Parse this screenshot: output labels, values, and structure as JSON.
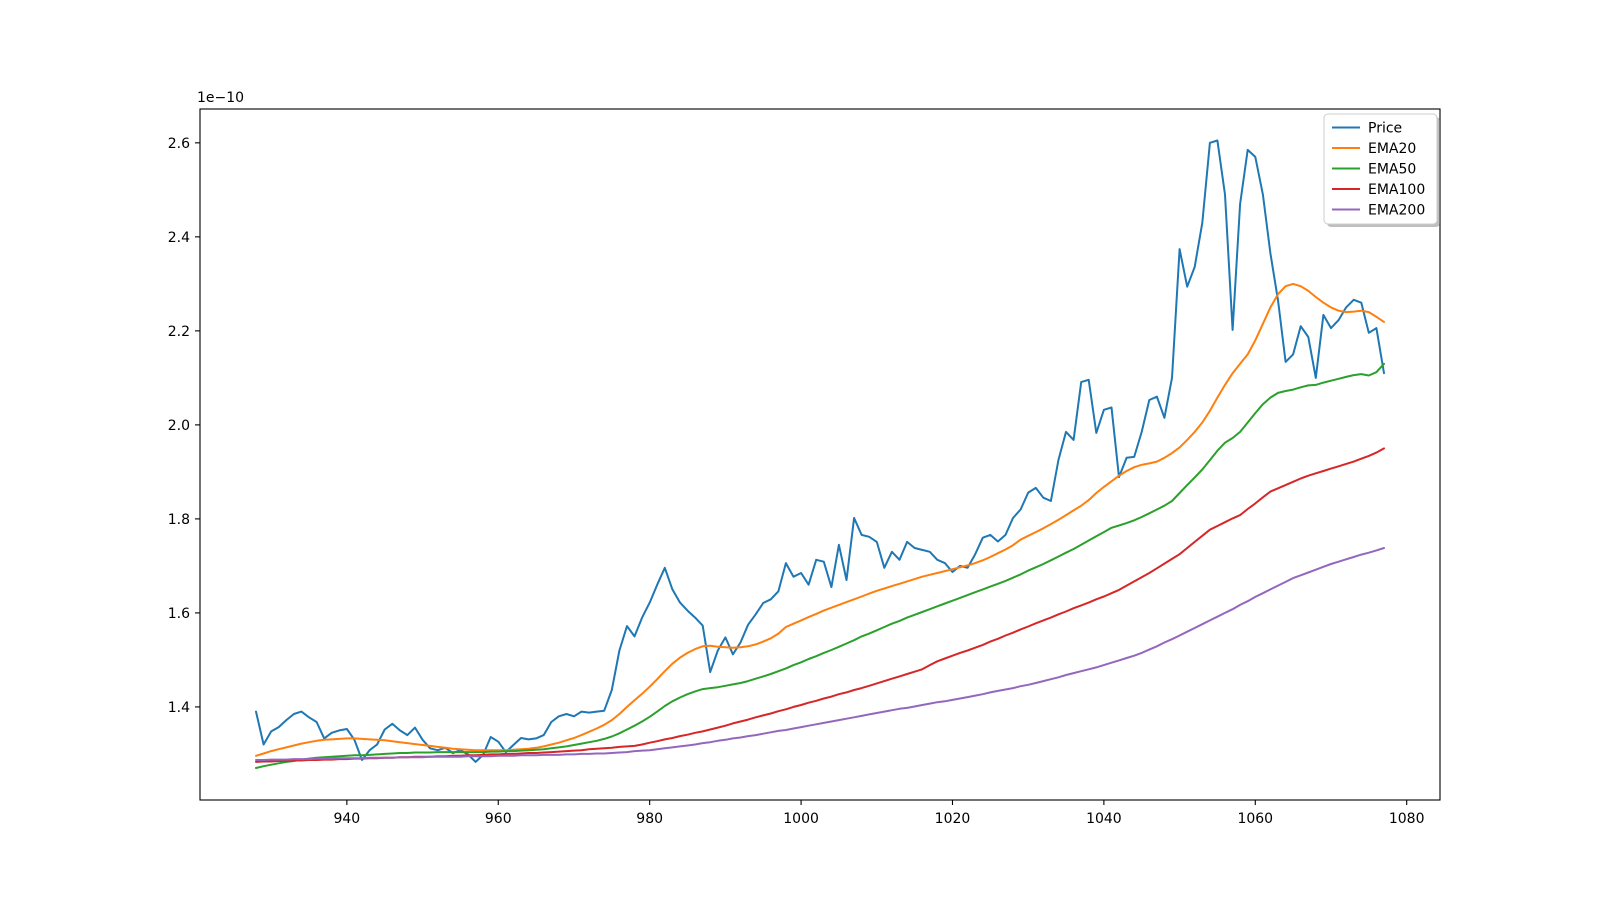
{
  "chart_data": {
    "type": "line",
    "title": "",
    "xlabel": "",
    "ylabel": "",
    "offset_text": "1e−10",
    "grid": false,
    "legend_position": "upper right",
    "xlim": [
      920.6,
      1084.4
    ],
    "ylim": [
      1.202,
      2.672
    ],
    "x_start": 928,
    "x_step": 1,
    "x_ticks": [
      {
        "value": 940,
        "label": "940"
      },
      {
        "value": 960,
        "label": "960"
      },
      {
        "value": 980,
        "label": "980"
      },
      {
        "value": 1000,
        "label": "1000"
      },
      {
        "value": 1020,
        "label": "1020"
      },
      {
        "value": 1040,
        "label": "1040"
      },
      {
        "value": 1060,
        "label": "1060"
      },
      {
        "value": 1080,
        "label": "1080"
      }
    ],
    "y_ticks": [
      {
        "value": 1.4,
        "label": "1.4"
      },
      {
        "value": 1.6,
        "label": "1.6"
      },
      {
        "value": 1.8,
        "label": "1.8"
      },
      {
        "value": 2.0,
        "label": "2.0"
      },
      {
        "value": 2.2,
        "label": "2.2"
      },
      {
        "value": 2.4,
        "label": "2.4"
      },
      {
        "value": 2.6,
        "label": "2.6"
      }
    ],
    "series": [
      {
        "name": "Price",
        "color": "#1f77b4",
        "values": [
          1.39,
          1.32,
          1.348,
          1.357,
          1.372,
          1.385,
          1.39,
          1.378,
          1.368,
          1.333,
          1.345,
          1.35,
          1.353,
          1.33,
          1.287,
          1.308,
          1.32,
          1.352,
          1.364,
          1.35,
          1.34,
          1.356,
          1.33,
          1.312,
          1.308,
          1.313,
          1.302,
          1.308,
          1.299,
          1.283,
          1.298,
          1.336,
          1.326,
          1.304,
          1.319,
          1.334,
          1.331,
          1.333,
          1.34,
          1.368,
          1.38,
          1.385,
          1.38,
          1.39,
          1.388,
          1.39,
          1.392,
          1.436,
          1.52,
          1.572,
          1.55,
          1.59,
          1.622,
          1.66,
          1.696,
          1.65,
          1.622,
          1.605,
          1.59,
          1.573,
          1.474,
          1.52,
          1.548,
          1.512,
          1.537,
          1.575,
          1.597,
          1.621,
          1.629,
          1.646,
          1.706,
          1.677,
          1.685,
          1.66,
          1.713,
          1.709,
          1.655,
          1.745,
          1.67,
          1.802,
          1.766,
          1.762,
          1.751,
          1.696,
          1.73,
          1.713,
          1.751,
          1.738,
          1.734,
          1.73,
          1.713,
          1.706,
          1.687,
          1.7,
          1.696,
          1.725,
          1.76,
          1.766,
          1.752,
          1.766,
          1.802,
          1.82,
          1.856,
          1.866,
          1.845,
          1.838,
          1.926,
          1.985,
          1.968,
          2.091,
          2.096,
          1.983,
          2.032,
          2.037,
          1.889,
          1.93,
          1.932,
          1.985,
          2.053,
          2.06,
          2.015,
          2.1,
          2.374,
          2.294,
          2.336,
          2.43,
          2.6,
          2.605,
          2.49,
          2.202,
          2.47,
          2.585,
          2.57,
          2.49,
          2.365,
          2.265,
          2.134,
          2.15,
          2.21,
          2.187,
          2.1,
          2.234,
          2.206,
          2.223,
          2.25,
          2.266,
          2.26,
          2.196,
          2.206,
          2.11
        ]
      },
      {
        "name": "EMA20",
        "color": "#ff7f0e",
        "values": [
          1.296,
          1.301,
          1.306,
          1.31,
          1.314,
          1.318,
          1.322,
          1.325,
          1.328,
          1.33,
          1.331,
          1.332,
          1.333,
          1.333,
          1.332,
          1.331,
          1.33,
          1.329,
          1.327,
          1.325,
          1.323,
          1.321,
          1.319,
          1.317,
          1.315,
          1.313,
          1.311,
          1.31,
          1.309,
          1.308,
          1.308,
          1.308,
          1.308,
          1.308,
          1.309,
          1.31,
          1.311,
          1.313,
          1.316,
          1.32,
          1.324,
          1.329,
          1.334,
          1.34,
          1.347,
          1.354,
          1.362,
          1.372,
          1.385,
          1.4,
          1.414,
          1.428,
          1.443,
          1.459,
          1.476,
          1.492,
          1.505,
          1.515,
          1.523,
          1.529,
          1.53,
          1.528,
          1.527,
          1.526,
          1.527,
          1.529,
          1.533,
          1.539,
          1.546,
          1.556,
          1.57,
          1.577,
          1.584,
          1.591,
          1.598,
          1.605,
          1.611,
          1.617,
          1.623,
          1.629,
          1.635,
          1.641,
          1.647,
          1.652,
          1.657,
          1.662,
          1.667,
          1.672,
          1.677,
          1.681,
          1.685,
          1.689,
          1.693,
          1.697,
          1.701,
          1.706,
          1.712,
          1.719,
          1.727,
          1.735,
          1.744,
          1.756,
          1.764,
          1.772,
          1.78,
          1.789,
          1.798,
          1.808,
          1.818,
          1.828,
          1.84,
          1.855,
          1.868,
          1.88,
          1.892,
          1.902,
          1.91,
          1.915,
          1.918,
          1.922,
          1.93,
          1.94,
          1.952,
          1.968,
          1.985,
          2.005,
          2.03,
          2.058,
          2.085,
          2.11,
          2.13,
          2.15,
          2.18,
          2.215,
          2.25,
          2.278,
          2.295,
          2.3,
          2.295,
          2.285,
          2.272,
          2.26,
          2.25,
          2.243,
          2.24,
          2.241,
          2.243,
          2.24,
          2.23,
          2.219
        ]
      },
      {
        "name": "EMA50",
        "color": "#2ca02c",
        "values": [
          1.27,
          1.274,
          1.277,
          1.28,
          1.283,
          1.285,
          1.288,
          1.29,
          1.292,
          1.293,
          1.294,
          1.295,
          1.296,
          1.297,
          1.297,
          1.298,
          1.299,
          1.3,
          1.301,
          1.302,
          1.302,
          1.303,
          1.303,
          1.303,
          1.304,
          1.304,
          1.304,
          1.304,
          1.304,
          1.304,
          1.304,
          1.305,
          1.305,
          1.306,
          1.306,
          1.307,
          1.308,
          1.309,
          1.31,
          1.312,
          1.314,
          1.316,
          1.319,
          1.322,
          1.325,
          1.328,
          1.332,
          1.337,
          1.344,
          1.352,
          1.36,
          1.369,
          1.379,
          1.39,
          1.402,
          1.412,
          1.42,
          1.427,
          1.433,
          1.438,
          1.44,
          1.442,
          1.445,
          1.448,
          1.451,
          1.455,
          1.46,
          1.465,
          1.47,
          1.476,
          1.482,
          1.489,
          1.495,
          1.502,
          1.508,
          1.515,
          1.521,
          1.528,
          1.535,
          1.542,
          1.55,
          1.556,
          1.563,
          1.57,
          1.577,
          1.583,
          1.59,
          1.596,
          1.602,
          1.608,
          1.614,
          1.62,
          1.626,
          1.632,
          1.638,
          1.644,
          1.65,
          1.656,
          1.662,
          1.668,
          1.675,
          1.682,
          1.69,
          1.697,
          1.704,
          1.712,
          1.72,
          1.728,
          1.736,
          1.745,
          1.754,
          1.763,
          1.772,
          1.781,
          1.786,
          1.791,
          1.797,
          1.804,
          1.812,
          1.82,
          1.828,
          1.838,
          1.855,
          1.872,
          1.888,
          1.905,
          1.925,
          1.945,
          1.962,
          1.972,
          1.985,
          2.005,
          2.025,
          2.044,
          2.058,
          2.068,
          2.072,
          2.075,
          2.08,
          2.084,
          2.085,
          2.09,
          2.094,
          2.098,
          2.102,
          2.106,
          2.108,
          2.105,
          2.112,
          2.13
        ]
      },
      {
        "name": "EMA100",
        "color": "#d62728",
        "values": [
          1.283,
          1.284,
          1.284,
          1.285,
          1.285,
          1.286,
          1.286,
          1.287,
          1.287,
          1.288,
          1.288,
          1.289,
          1.289,
          1.29,
          1.29,
          1.291,
          1.291,
          1.292,
          1.292,
          1.293,
          1.293,
          1.294,
          1.294,
          1.294,
          1.295,
          1.295,
          1.296,
          1.296,
          1.297,
          1.297,
          1.298,
          1.299,
          1.299,
          1.3,
          1.3,
          1.301,
          1.302,
          1.302,
          1.303,
          1.304,
          1.305,
          1.306,
          1.307,
          1.308,
          1.31,
          1.311,
          1.312,
          1.313,
          1.315,
          1.316,
          1.317,
          1.32,
          1.324,
          1.327,
          1.331,
          1.334,
          1.338,
          1.341,
          1.345,
          1.348,
          1.352,
          1.356,
          1.36,
          1.365,
          1.369,
          1.373,
          1.378,
          1.382,
          1.386,
          1.391,
          1.395,
          1.4,
          1.404,
          1.409,
          1.413,
          1.418,
          1.422,
          1.427,
          1.431,
          1.436,
          1.44,
          1.445,
          1.45,
          1.455,
          1.46,
          1.465,
          1.47,
          1.475,
          1.48,
          1.489,
          1.497,
          1.503,
          1.509,
          1.515,
          1.52,
          1.526,
          1.532,
          1.539,
          1.545,
          1.552,
          1.558,
          1.565,
          1.571,
          1.578,
          1.584,
          1.59,
          1.597,
          1.603,
          1.61,
          1.616,
          1.622,
          1.629,
          1.635,
          1.642,
          1.649,
          1.658,
          1.667,
          1.676,
          1.685,
          1.695,
          1.705,
          1.715,
          1.725,
          1.738,
          1.751,
          1.764,
          1.777,
          1.785,
          1.793,
          1.801,
          1.808,
          1.821,
          1.833,
          1.846,
          1.858,
          1.865,
          1.872,
          1.879,
          1.886,
          1.892,
          1.897,
          1.902,
          1.907,
          1.912,
          1.917,
          1.922,
          1.928,
          1.934,
          1.941,
          1.95
        ]
      },
      {
        "name": "EMA200",
        "color": "#9467bd",
        "values": [
          1.287,
          1.287,
          1.288,
          1.288,
          1.288,
          1.289,
          1.289,
          1.289,
          1.29,
          1.29,
          1.29,
          1.291,
          1.291,
          1.291,
          1.291,
          1.292,
          1.292,
          1.292,
          1.292,
          1.293,
          1.293,
          1.293,
          1.293,
          1.294,
          1.294,
          1.294,
          1.294,
          1.294,
          1.295,
          1.295,
          1.295,
          1.295,
          1.296,
          1.296,
          1.296,
          1.297,
          1.297,
          1.297,
          1.298,
          1.298,
          1.298,
          1.299,
          1.299,
          1.3,
          1.3,
          1.301,
          1.301,
          1.302,
          1.303,
          1.304,
          1.306,
          1.307,
          1.308,
          1.31,
          1.312,
          1.314,
          1.316,
          1.318,
          1.32,
          1.323,
          1.325,
          1.328,
          1.33,
          1.333,
          1.335,
          1.338,
          1.34,
          1.343,
          1.346,
          1.349,
          1.351,
          1.354,
          1.357,
          1.36,
          1.363,
          1.366,
          1.369,
          1.372,
          1.375,
          1.378,
          1.381,
          1.384,
          1.387,
          1.39,
          1.393,
          1.396,
          1.398,
          1.401,
          1.404,
          1.407,
          1.41,
          1.412,
          1.415,
          1.418,
          1.421,
          1.424,
          1.427,
          1.431,
          1.434,
          1.437,
          1.44,
          1.444,
          1.447,
          1.451,
          1.455,
          1.459,
          1.463,
          1.468,
          1.472,
          1.476,
          1.48,
          1.484,
          1.489,
          1.494,
          1.499,
          1.504,
          1.509,
          1.515,
          1.522,
          1.529,
          1.537,
          1.544,
          1.552,
          1.56,
          1.568,
          1.576,
          1.584,
          1.592,
          1.6,
          1.608,
          1.617,
          1.625,
          1.634,
          1.642,
          1.65,
          1.658,
          1.666,
          1.674,
          1.68,
          1.686,
          1.692,
          1.698,
          1.704,
          1.709,
          1.714,
          1.719,
          1.724,
          1.728,
          1.733,
          1.738
        ]
      }
    ]
  }
}
